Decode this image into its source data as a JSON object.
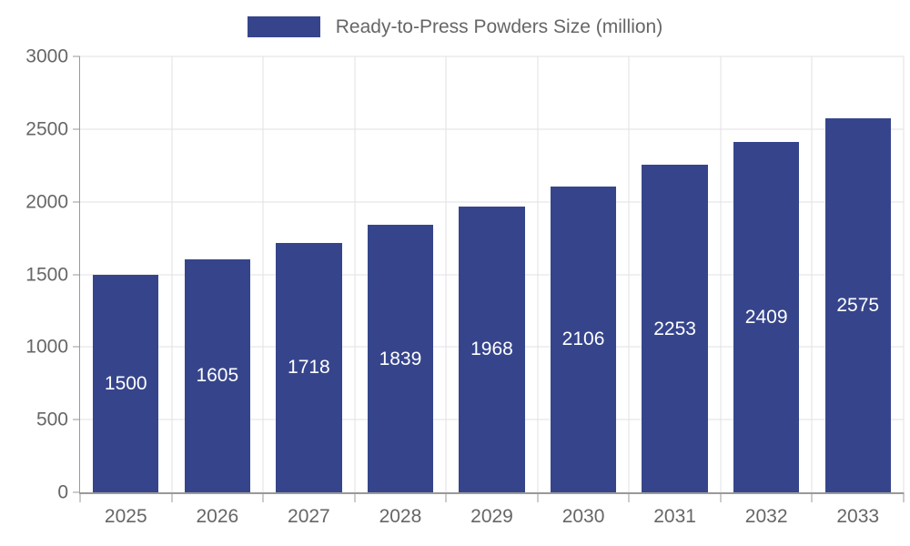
{
  "legend": {
    "label": "Ready-to-Press Powders Size (million)"
  },
  "colors": {
    "bar": "#36458b",
    "grid": "#e2e2e6",
    "axis": "#999999",
    "text": "#666666",
    "bar_label": "#ffffff"
  },
  "chart_data": {
    "type": "bar",
    "title": "Ready-to-Press Powders Size (million)",
    "series_name": "Ready-to-Press Powders Size (million)",
    "categories": [
      "2025",
      "2026",
      "2027",
      "2028",
      "2029",
      "2030",
      "2031",
      "2032",
      "2033"
    ],
    "values": [
      1500,
      1605,
      1718,
      1839,
      1968,
      2106,
      2253,
      2409,
      2575
    ],
    "xlabel": "",
    "ylabel": "",
    "ylim": [
      0,
      3000
    ],
    "yticks": [
      0,
      500,
      1000,
      1500,
      2000,
      2500,
      3000
    ],
    "grid": true,
    "legend_position": "top",
    "bar_label_position": "inside-center"
  }
}
